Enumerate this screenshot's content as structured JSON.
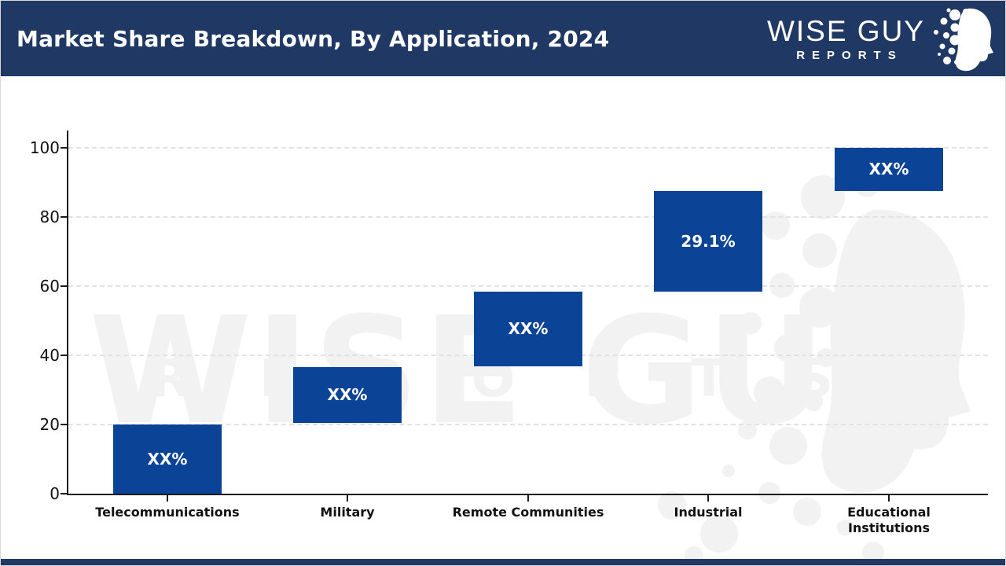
{
  "header": {
    "title": "Market Share Breakdown, By Application, 2024",
    "logo": {
      "line1": "WISE GUY",
      "line2": "REPORTS"
    }
  },
  "watermark": {
    "line1": "WISE GUY",
    "line2": "REPORTS"
  },
  "colors": {
    "header_bg": "#1f3864",
    "bar": "#0b4397",
    "bar_label": "#ffffff",
    "axis": "#1a1a1a",
    "gridline": "#e2e2e2",
    "watermark": "#f2f2f2",
    "footer_bg": "#1f3864"
  },
  "chart_data": {
    "type": "bar",
    "subtype": "waterfall",
    "title": "Market Share Breakdown, By Application, 2024",
    "xlabel": "",
    "ylabel": "",
    "ylim": [
      0,
      105
    ],
    "yticks": [
      0,
      20,
      40,
      60,
      80,
      100
    ],
    "grid": "horizontal-dashed",
    "legend": "none",
    "categories": [
      "Telecommunications",
      "Military",
      "Remote Communities",
      "Industrial",
      "Educational\nInstitutions"
    ],
    "segments": [
      {
        "category": "Telecommunications",
        "start": 0,
        "end": 20,
        "label": "XX%"
      },
      {
        "category": "Military",
        "start": 20.5,
        "end": 36.6,
        "label": "XX%"
      },
      {
        "category": "Remote Communities",
        "start": 36.9,
        "end": 58.4,
        "label": "XX%"
      },
      {
        "category": "Industrial",
        "start": 58.4,
        "end": 87.5,
        "label": "29.1%"
      },
      {
        "category": "Educational\nInstitutions",
        "start": 87.6,
        "end": 100,
        "label": "XX%"
      }
    ]
  }
}
